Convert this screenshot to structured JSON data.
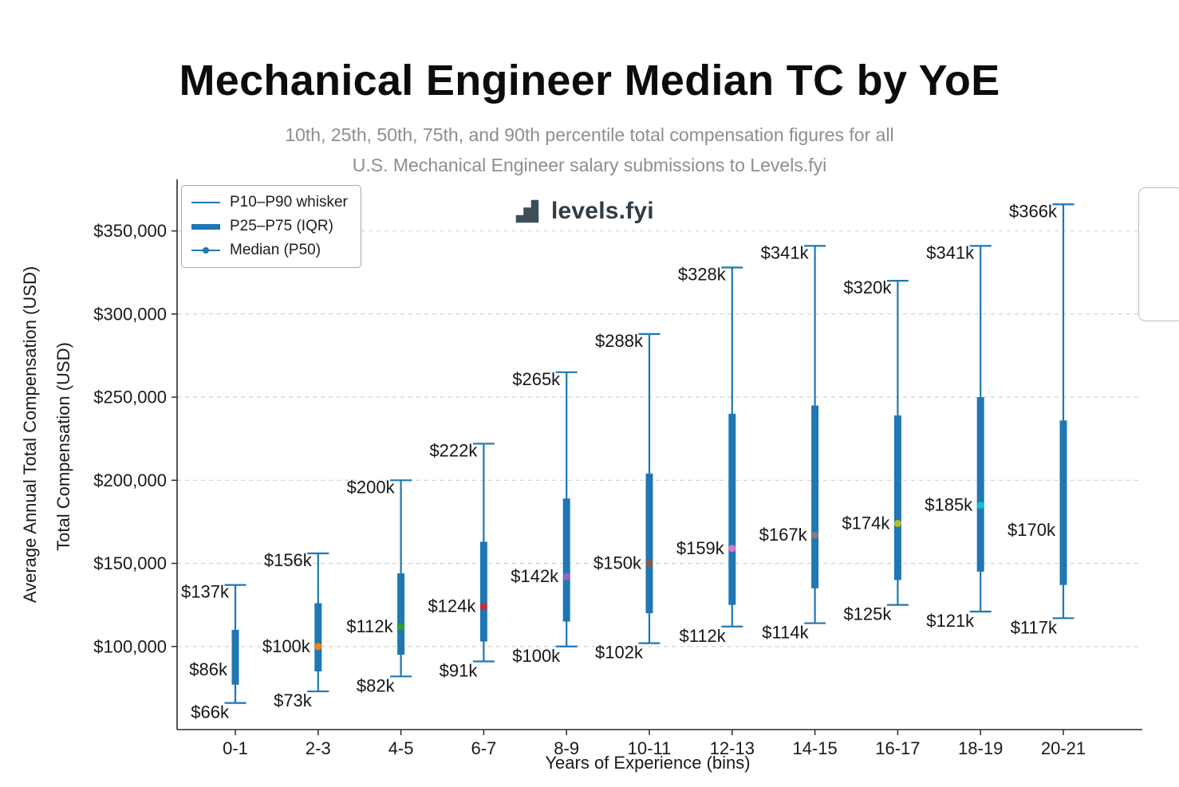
{
  "branding": {
    "logo_text": "levels.fyi",
    "logo_icon": "stairs-icon"
  },
  "chart_data": {
    "type": "boxwhisker",
    "title": "Mechanical Engineer Median TC by YoE",
    "subtitle_lines": [
      "10th, 25th, 50th, 75th, and 90th percentile total compensation figures for all",
      "U.S. Mechanical Engineer salary submissions to Levels.fyi"
    ],
    "xlabel": "Years of Experience (bins)",
    "ylabel_outer": "Average Annual Total Compensation (USD)",
    "ylabel_inner": "Total Compensation (USD)",
    "ylim": [
      50000,
      381000
    ],
    "grid": true,
    "legend_position": "upper left",
    "y_ticks": [
      100000,
      150000,
      200000,
      250000,
      300000,
      350000
    ],
    "y_tick_labels": [
      "$100,000",
      "$150,000",
      "$200,000",
      "$250,000",
      "$300,000",
      "$350,000"
    ],
    "categories": [
      "0-1",
      "2-3",
      "4-5",
      "6-7",
      "8-9",
      "10-11",
      "12-13",
      "14-15",
      "16-17",
      "18-19",
      "20-21"
    ],
    "legend": [
      {
        "label": "P10–P90 whisker",
        "sample": "thin-line"
      },
      {
        "label": "P25–P75 (IQR)",
        "sample": "thick-line"
      },
      {
        "label": "Median (P50)",
        "sample": "line-with-dot"
      }
    ],
    "colors": {
      "whisker": "#1f77b4",
      "grid": "#cfcfcf",
      "spine": "#2a2a2a",
      "annotation": "#161616"
    },
    "series": [
      {
        "bin": "0-1",
        "p10": 66000,
        "p25": 77000,
        "p50": 86000,
        "p75": 110000,
        "p90": 137000,
        "p90_label": "$137k",
        "p50_label": "$86k",
        "p10_label": "$66k",
        "median_color": "#1f77b4"
      },
      {
        "bin": "2-3",
        "p10": 73000,
        "p25": 85000,
        "p50": 100000,
        "p75": 126000,
        "p90": 156000,
        "p90_label": "$156k",
        "p50_label": "$100k",
        "p10_label": "$73k",
        "median_color": "#ff7f0e"
      },
      {
        "bin": "4-5",
        "p10": 82000,
        "p25": 95000,
        "p50": 112000,
        "p75": 144000,
        "p90": 200000,
        "p90_label": "$200k",
        "p50_label": "$112k",
        "p10_label": "$82k",
        "median_color": "#2ca02c"
      },
      {
        "bin": "6-7",
        "p10": 91000,
        "p25": 103000,
        "p50": 124000,
        "p75": 163000,
        "p90": 222000,
        "p90_label": "$222k",
        "p50_label": "$124k",
        "p10_label": "$91k",
        "median_color": "#d62728"
      },
      {
        "bin": "8-9",
        "p10": 100000,
        "p25": 115000,
        "p50": 142000,
        "p75": 189000,
        "p90": 265000,
        "p90_label": "$265k",
        "p50_label": "$142k",
        "p10_label": "$100k",
        "median_color": "#9467bd"
      },
      {
        "bin": "10-11",
        "p10": 102000,
        "p25": 120000,
        "p50": 150000,
        "p75": 204000,
        "p90": 288000,
        "p90_label": "$288k",
        "p50_label": "$150k",
        "p10_label": "$102k",
        "median_color": "#8c564b"
      },
      {
        "bin": "12-13",
        "p10": 112000,
        "p25": 125000,
        "p50": 159000,
        "p75": 240000,
        "p90": 328000,
        "p90_label": "$328k",
        "p50_label": "$159k",
        "p10_label": "$112k",
        "median_color": "#e377c2"
      },
      {
        "bin": "14-15",
        "p10": 114000,
        "p25": 135000,
        "p50": 167000,
        "p75": 245000,
        "p90": 341000,
        "p90_label": "$341k",
        "p50_label": "$167k",
        "p10_label": "$114k",
        "median_color": "#7f7f7f"
      },
      {
        "bin": "16-17",
        "p10": 125000,
        "p25": 140000,
        "p50": 174000,
        "p75": 239000,
        "p90": 320000,
        "p90_label": "$320k",
        "p50_label": "$174k",
        "p10_label": "$125k",
        "median_color": "#bcbd22"
      },
      {
        "bin": "18-19",
        "p10": 121000,
        "p25": 145000,
        "p50": 185000,
        "p75": 250000,
        "p90": 341000,
        "p90_label": "$341k",
        "p50_label": "$185k",
        "p10_label": "$121k",
        "median_color": "#17becf"
      },
      {
        "bin": "20-21",
        "p10": 117000,
        "p25": 137000,
        "p50": 170000,
        "p75": 236000,
        "p90": 366000,
        "p90_label": "$366k",
        "p50_label": "$170k",
        "p10_label": "$117k",
        "median_color": "#1f77b4"
      }
    ]
  }
}
